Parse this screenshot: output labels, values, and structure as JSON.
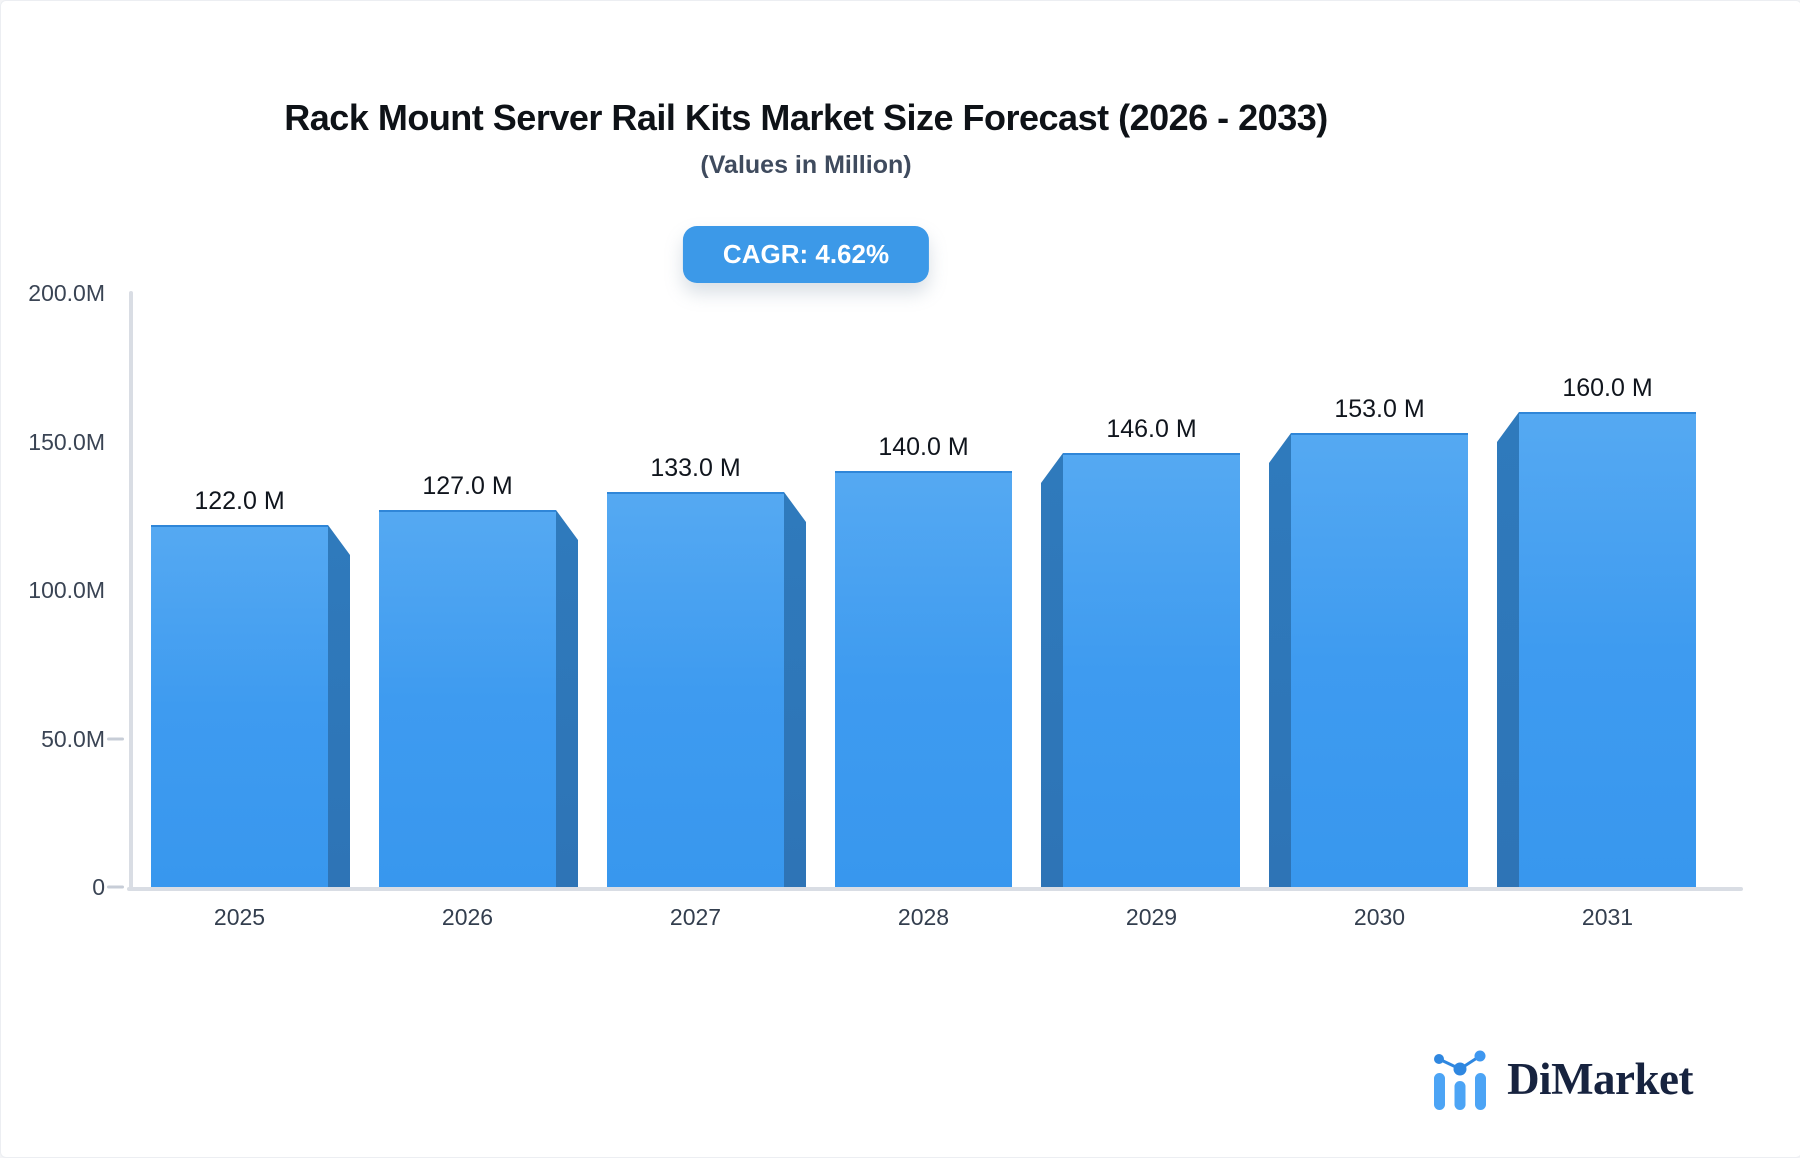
{
  "header": {
    "title": "Rack Mount Server Rail Kits Market Size Forecast (2026 - 2033)",
    "subtitle": "(Values in Million)",
    "cagr_badge": "CAGR: 4.62%"
  },
  "chart_data": {
    "type": "bar",
    "title": "Rack Mount Server Rail Kits Market Size Forecast (2026 - 2033)",
    "subtitle": "(Values in Million)",
    "unit": "Million",
    "cagr_percent": 4.62,
    "categories": [
      "2025",
      "2026",
      "2027",
      "2028",
      "2029",
      "2030",
      "2031"
    ],
    "values": [
      122,
      127,
      133,
      140,
      146,
      153,
      160
    ],
    "value_labels": [
      "122.0 M",
      "127.0 M",
      "133.0 M",
      "140.0 M",
      "146.0 M",
      "153.0 M",
      "160.0 M"
    ],
    "ylabel": "",
    "xlabel": "",
    "ylim": [
      0,
      200
    ],
    "grid": false,
    "legend": "none",
    "y_ticks": [
      {
        "label": "200.0M",
        "dash": false
      },
      {
        "label": "150.0M",
        "dash": false
      },
      {
        "label": "100.0M",
        "dash": false
      },
      {
        "label": "50.0M",
        "dash": true
      },
      {
        "label": "0",
        "dash": true
      }
    ],
    "colors": {
      "bar_face": "#3e9bf0",
      "bar_side": "#2e74b6",
      "axis": "#d9dde4",
      "badge_bg": "#3c99e8",
      "value_text": "#10151d",
      "tick_text": "#3a4454"
    }
  },
  "footer": {
    "brand": "DiMarket"
  }
}
